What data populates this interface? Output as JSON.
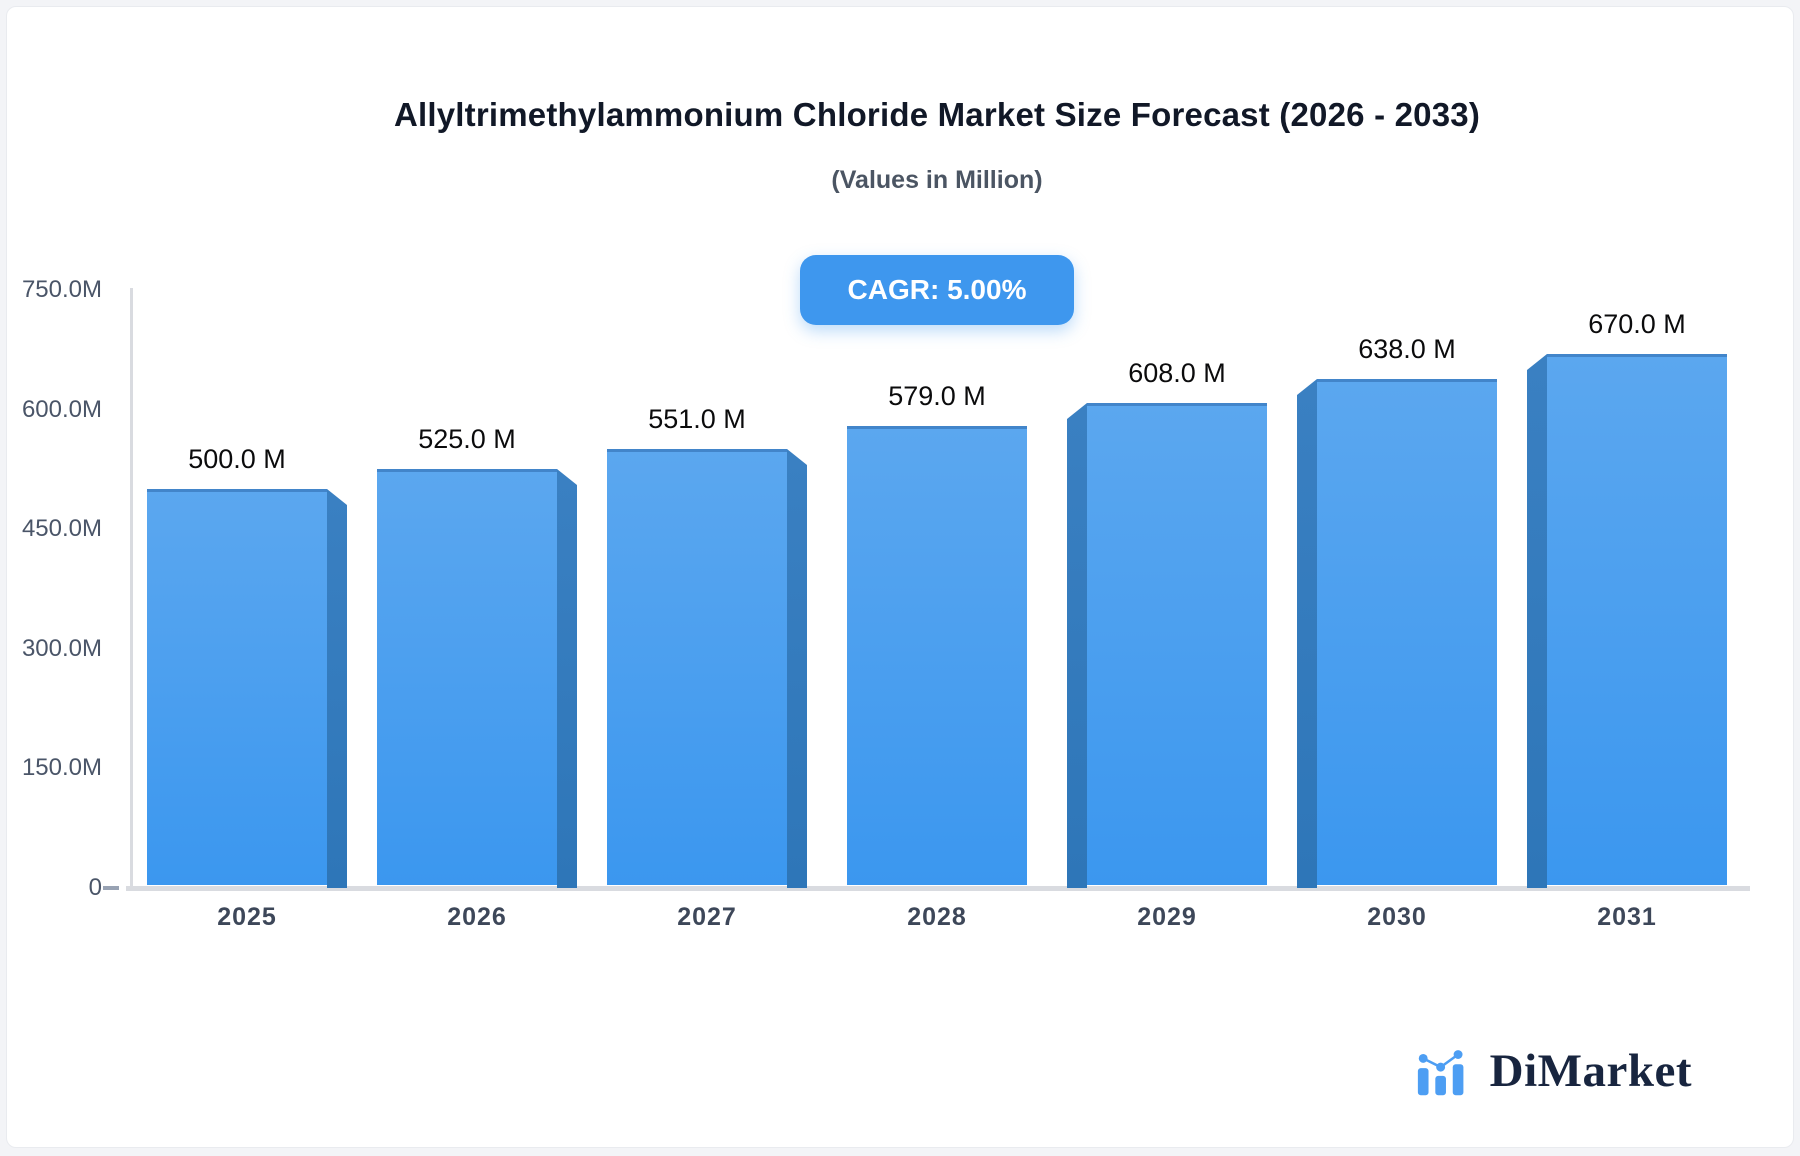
{
  "header": {
    "title": "Allyltrimethylammonium Chloride Market Size Forecast (2026 - 2033)",
    "subtitle": "(Values in Million)"
  },
  "cagr": {
    "label": "CAGR: 5.00%",
    "percent": "5.00%"
  },
  "chart_data": {
    "type": "bar",
    "title": "Allyltrimethylammonium Chloride Market Size Forecast (2026 - 2033)",
    "subtitle": "(Values in Million)",
    "categories": [
      "2025",
      "2026",
      "2027",
      "2028",
      "2029",
      "2030",
      "2031"
    ],
    "values": [
      500,
      525,
      551,
      579,
      608,
      638,
      670
    ],
    "value_labels": [
      "500.0 M",
      "525.0 M",
      "551.0 M",
      "579.0 M",
      "608.0 M",
      "638.0 M",
      "670.0 M"
    ],
    "yticks": [
      {
        "label": "750.0M",
        "value": 750
      },
      {
        "label": "600.0M",
        "value": 600
      },
      {
        "label": "450.0M",
        "value": 450
      },
      {
        "label": "300.0M",
        "value": 300
      },
      {
        "label": "150.0M",
        "value": 150
      },
      {
        "label": "0",
        "value": 0
      }
    ],
    "ylim": [
      0,
      750
    ],
    "xlabel": "",
    "ylabel": "",
    "grid": false,
    "legend": false,
    "cagr": "5.00%",
    "bar_style": "3d-extruded"
  },
  "branding": {
    "name": "DiMarket",
    "icon": "bar-chart-sparkline-logo-icon"
  },
  "colors": {
    "accent": "#3E97EE",
    "bar_top": "#5BA7EF",
    "bar_bottom": "#3B97EF",
    "bar_side": "#2E76B8",
    "bar_edge": "#4285CA",
    "axis": "#D9DBE0",
    "tick": "#98A2B3",
    "text_dark": "#111827",
    "text_mid": "#4B5563",
    "text_axis": "#4A5568",
    "text_xaxis": "#3D4759",
    "logo_blue": "#4D9EF3",
    "logo_navy": "#18253F",
    "page_bg": "#F3F4F7",
    "card_bg": "#FFFFFF"
  }
}
